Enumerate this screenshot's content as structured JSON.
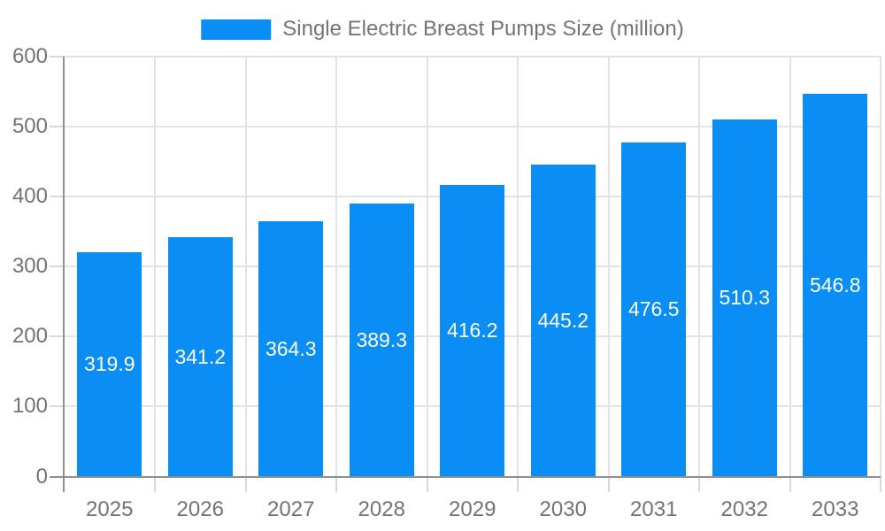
{
  "chart_data": {
    "type": "bar",
    "title": "Single Electric Breast Pumps Size (million)",
    "series_name": "Single Electric Breast Pumps Size (million)",
    "categories": [
      "2025",
      "2026",
      "2027",
      "2028",
      "2029",
      "2030",
      "2031",
      "2032",
      "2033"
    ],
    "values": [
      319.9,
      341.2,
      364.3,
      389.3,
      416.2,
      445.2,
      476.5,
      510.3,
      546.8
    ],
    "xlabel": "",
    "ylabel": "",
    "ylim": [
      0,
      600
    ],
    "yticks": [
      0,
      100,
      200,
      300,
      400,
      500,
      600
    ],
    "grid": true,
    "legend_position": "top",
    "value_labels": "inside-center",
    "colors": {
      "bar": "#0A8EF5",
      "value_label": "#FFFFFF",
      "axis_text": "#737373",
      "legend_text": "#747474",
      "gridline": "#E3E3E3",
      "tick": "#D8D8D8",
      "axis_line": "#8F8F8F",
      "background": "#FFFFFF"
    }
  }
}
